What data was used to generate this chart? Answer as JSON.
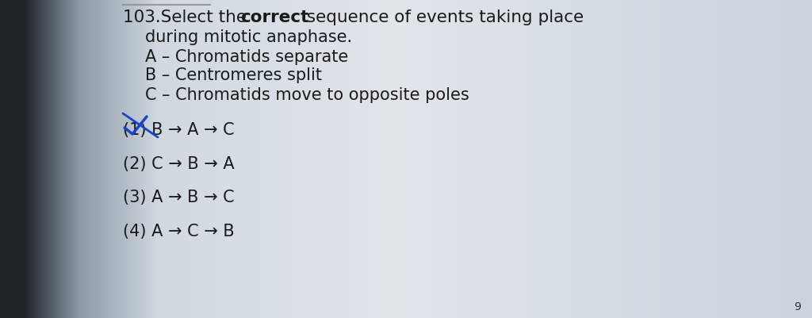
{
  "bg_color": "#d0d4da",
  "page_color": "#dde0e5",
  "left_strip_color": "#1a1e22",
  "left_grad_color": "#8a9aaa",
  "top_bar_color": "#aab0b8",
  "text_color": "#1a1a1a",
  "checkmark_color": "#1a44cc",
  "title_prefix": "103.Select the ",
  "title_bold": "correct",
  "title_suffix": " sequence of events taking place",
  "title_line2": "during mitotic anaphase.",
  "items": [
    "A – Chromatids separate",
    "B – Centromeres split",
    "C – Chromatids move to opposite poles"
  ],
  "option1": "(1) B → A → C",
  "option2": "(2) C → B → A",
  "option3": "(3) A → B → C",
  "option4": "(4) A → C → B",
  "footnote": "9"
}
